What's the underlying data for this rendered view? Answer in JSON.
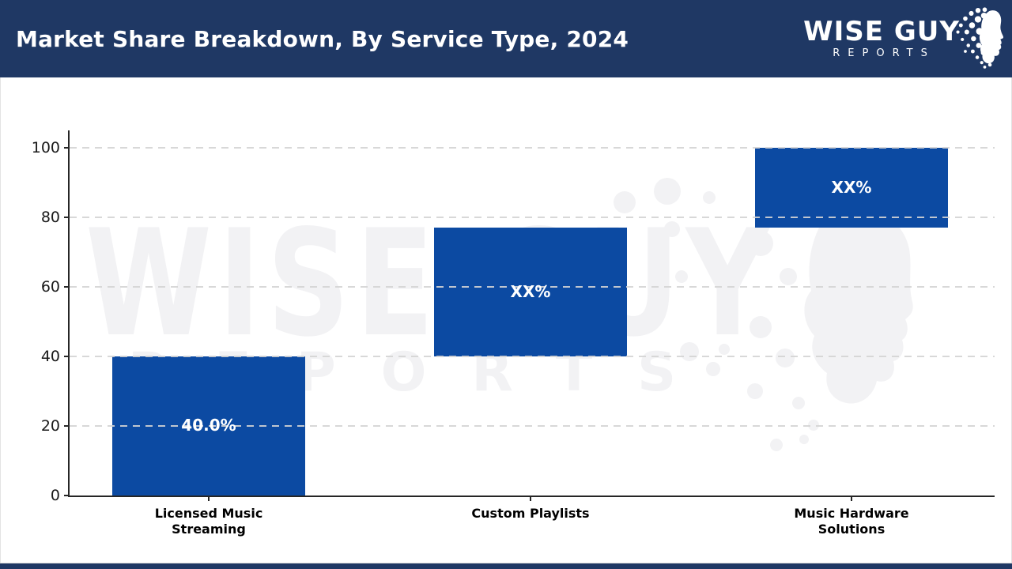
{
  "header": {
    "title": "Market Share Breakdown, By Service Type, 2024",
    "brand": {
      "line1": "WISE GUY",
      "line2": "REPORTS"
    }
  },
  "watermark": {
    "line1": "WISE GUY",
    "line2": "REPORTS"
  },
  "chart_data": {
    "type": "bar",
    "subtype": "waterfall",
    "title": "Market Share Breakdown, By Service Type, 2024",
    "categories": [
      "Licensed Music Streaming",
      "Custom Playlists",
      "Music Hardware Solutions"
    ],
    "xtick_label_lines": [
      [
        "Licensed Music",
        "Streaming"
      ],
      [
        "Custom Playlists"
      ],
      [
        "Music Hardware",
        "Solutions"
      ]
    ],
    "bars": [
      {
        "category": "Licensed Music Streaming",
        "start": 0,
        "end": 40,
        "value": 40.0,
        "label": "40.0%"
      },
      {
        "category": "Custom Playlists",
        "start": 40,
        "end": 77,
        "value": 37,
        "label": "XX%"
      },
      {
        "category": "Music Hardware Solutions",
        "start": 77,
        "end": 100,
        "value": 23,
        "label": "XX%"
      }
    ],
    "ylim": [
      0,
      100
    ],
    "yticks": [
      0,
      20,
      40,
      60,
      80,
      100
    ],
    "xlabel": "",
    "ylabel": "",
    "grid": {
      "axis": "y",
      "style": "dashed",
      "drawn_over_bars": true
    },
    "colors": {
      "bar": "#0c4aa2",
      "grid": "#d4d4d4",
      "axis": "#262626",
      "bar_label_text": "#ffffff",
      "header_bg": "#1f3864",
      "watermark": "#f2f2f4",
      "background": "#ffffff"
    }
  }
}
